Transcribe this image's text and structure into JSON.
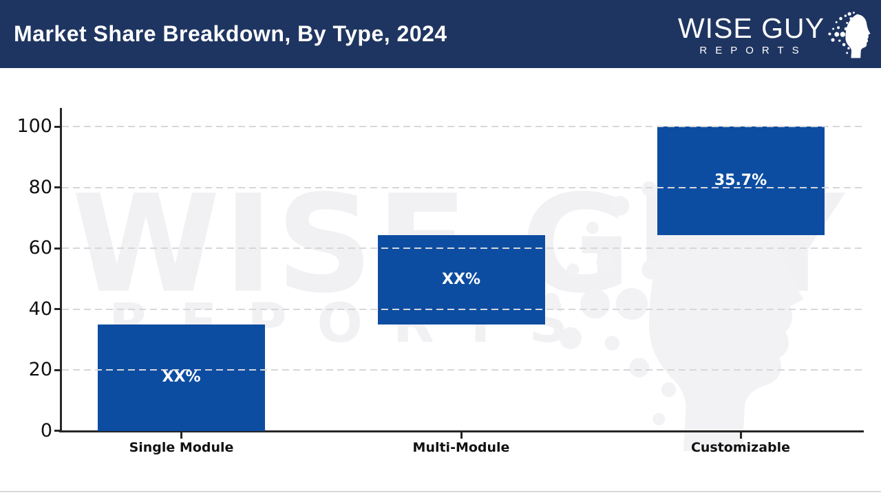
{
  "header": {
    "title": "Market Share Breakdown, By Type, 2024",
    "logo": {
      "line1": "WISE GUY",
      "line2": "REPORTS"
    }
  },
  "watermark": {
    "line1": "WISE GUY",
    "line2": "REPORTS"
  },
  "chart_data": {
    "type": "bar",
    "subtype": "waterfall",
    "title": "Market Share Breakdown, By Type, 2024",
    "categories": [
      "Single Module",
      "Multi-Module",
      "Customizable"
    ],
    "segments": [
      {
        "category": "Single Module",
        "start": 0,
        "end": 35,
        "label": "XX%",
        "implied_share": 35
      },
      {
        "category": "Multi-Module",
        "start": 35,
        "end": 64.3,
        "label": "XX%",
        "implied_share": 29.3
      },
      {
        "category": "Customizable",
        "start": 64.3,
        "end": 100,
        "label": "35.7%",
        "implied_share": 35.7
      }
    ],
    "ylim": [
      0,
      100
    ],
    "yticks": [
      0,
      20,
      40,
      60,
      80,
      100
    ],
    "xlabel": "",
    "ylabel": "",
    "legend": "none",
    "grid": "horizontal dashed lines drawn above bars"
  },
  "colors": {
    "header_bg": "#1f3561",
    "bar": "#0d4da1",
    "axis": "#262626",
    "gridline": "#d7d7d9",
    "watermark": "#f1f1f4",
    "label_text": "#111111",
    "bar_label_text": "#ffffff"
  }
}
